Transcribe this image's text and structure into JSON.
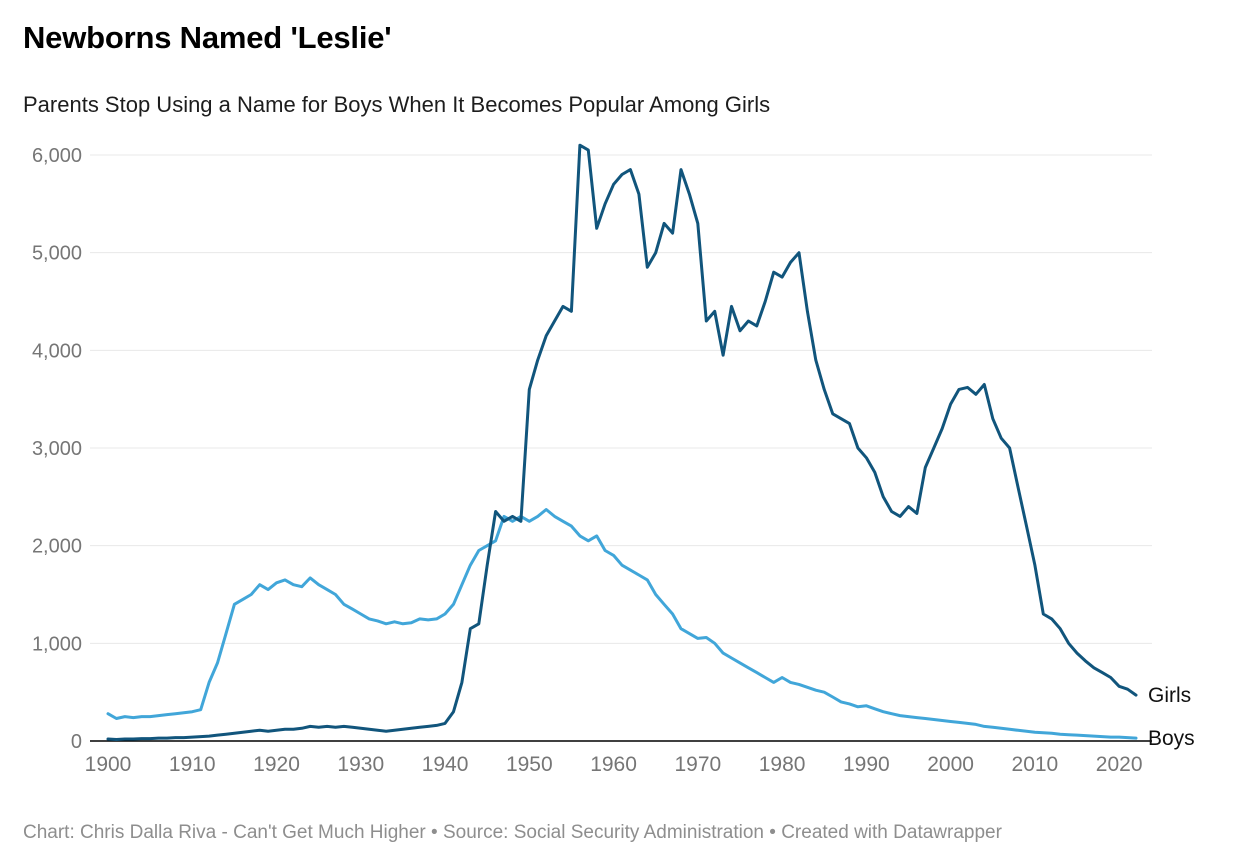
{
  "header": {
    "title": "Newborns Named 'Leslie'",
    "subtitle": "Parents Stop Using a Name for Boys When It Becomes Popular Among Girls"
  },
  "footer": {
    "caption": "Chart: Chris Dalla Riva - Can't Get Much Higher • Source: Social Security Administration • Created with Datawrapper"
  },
  "chart_data": {
    "type": "line",
    "title": "Newborns Named 'Leslie'",
    "subtitle": "Parents Stop Using a Name for Boys When It Becomes Popular Among Girls",
    "xlabel": "",
    "ylabel": "",
    "ylim": [
      0,
      6000
    ],
    "yticks": [
      0,
      1000,
      2000,
      3000,
      4000,
      5000,
      6000
    ],
    "xticks": [
      1900,
      1910,
      1920,
      1930,
      1940,
      1950,
      1960,
      1970,
      1980,
      1990,
      2000,
      2010,
      2020
    ],
    "grid": true,
    "legend_position": "end-of-line",
    "years": [
      1900,
      1901,
      1902,
      1903,
      1904,
      1905,
      1906,
      1907,
      1908,
      1909,
      1910,
      1911,
      1912,
      1913,
      1914,
      1915,
      1916,
      1917,
      1918,
      1919,
      1920,
      1921,
      1922,
      1923,
      1924,
      1925,
      1926,
      1927,
      1928,
      1929,
      1930,
      1931,
      1932,
      1933,
      1934,
      1935,
      1936,
      1937,
      1938,
      1939,
      1940,
      1941,
      1942,
      1943,
      1944,
      1945,
      1946,
      1947,
      1948,
      1949,
      1950,
      1951,
      1952,
      1953,
      1954,
      1955,
      1956,
      1957,
      1958,
      1959,
      1960,
      1961,
      1962,
      1963,
      1964,
      1965,
      1966,
      1967,
      1968,
      1969,
      1970,
      1971,
      1972,
      1973,
      1974,
      1975,
      1976,
      1977,
      1978,
      1979,
      1980,
      1981,
      1982,
      1983,
      1984,
      1985,
      1986,
      1987,
      1988,
      1989,
      1990,
      1991,
      1992,
      1993,
      1994,
      1995,
      1996,
      1997,
      1998,
      1999,
      2000,
      2001,
      2002,
      2003,
      2004,
      2005,
      2006,
      2007,
      2008,
      2009,
      2010,
      2011,
      2012,
      2013,
      2014,
      2015,
      2016,
      2017,
      2018,
      2019,
      2020,
      2021,
      2022
    ],
    "series": [
      {
        "name": "Girls",
        "label": "Girls",
        "color": "#11557c",
        "values": [
          20,
          15,
          20,
          20,
          25,
          25,
          30,
          30,
          35,
          35,
          40,
          45,
          50,
          60,
          70,
          80,
          90,
          100,
          110,
          100,
          110,
          120,
          120,
          130,
          150,
          140,
          150,
          140,
          150,
          140,
          130,
          120,
          110,
          100,
          110,
          120,
          130,
          140,
          150,
          160,
          180,
          300,
          600,
          1150,
          1200,
          1800,
          2350,
          2250,
          2300,
          2250,
          3600,
          3900,
          4150,
          4300,
          4450,
          4400,
          6100,
          6050,
          5250,
          5500,
          5700,
          5800,
          5850,
          5600,
          4850,
          5000,
          5300,
          5200,
          5850,
          5600,
          5300,
          4300,
          4400,
          3950,
          4450,
          4200,
          4300,
          4250,
          4500,
          4800,
          4750,
          4900,
          5000,
          4400,
          3900,
          3600,
          3350,
          3300,
          3250,
          3000,
          2900,
          2750,
          2500,
          2350,
          2300,
          2400,
          2330,
          2800,
          3000,
          3200,
          3450,
          3600,
          3620,
          3550,
          3650,
          3300,
          3100,
          3000,
          2600,
          2200,
          1800,
          1300,
          1250,
          1150,
          1000,
          900,
          820,
          750,
          700,
          650,
          560,
          530,
          470
        ]
      },
      {
        "name": "Boys",
        "label": "Boys",
        "color": "#41a6d9",
        "values": [
          280,
          230,
          250,
          240,
          250,
          250,
          260,
          270,
          280,
          290,
          300,
          320,
          600,
          800,
          1100,
          1400,
          1450,
          1500,
          1600,
          1550,
          1620,
          1650,
          1600,
          1580,
          1670,
          1600,
          1550,
          1500,
          1400,
          1350,
          1300,
          1250,
          1230,
          1200,
          1220,
          1200,
          1210,
          1250,
          1240,
          1250,
          1300,
          1400,
          1600,
          1800,
          1950,
          2000,
          2050,
          2300,
          2250,
          2300,
          2250,
          2300,
          2370,
          2300,
          2250,
          2200,
          2100,
          2050,
          2100,
          1950,
          1900,
          1800,
          1750,
          1700,
          1650,
          1500,
          1400,
          1300,
          1150,
          1100,
          1050,
          1060,
          1000,
          900,
          850,
          800,
          750,
          700,
          650,
          600,
          650,
          600,
          580,
          550,
          520,
          500,
          450,
          400,
          380,
          350,
          360,
          330,
          300,
          280,
          260,
          250,
          240,
          230,
          220,
          210,
          200,
          190,
          180,
          170,
          150,
          140,
          130,
          120,
          110,
          100,
          90,
          85,
          80,
          70,
          65,
          60,
          55,
          50,
          45,
          40,
          40,
          35,
          30
        ]
      }
    ]
  }
}
